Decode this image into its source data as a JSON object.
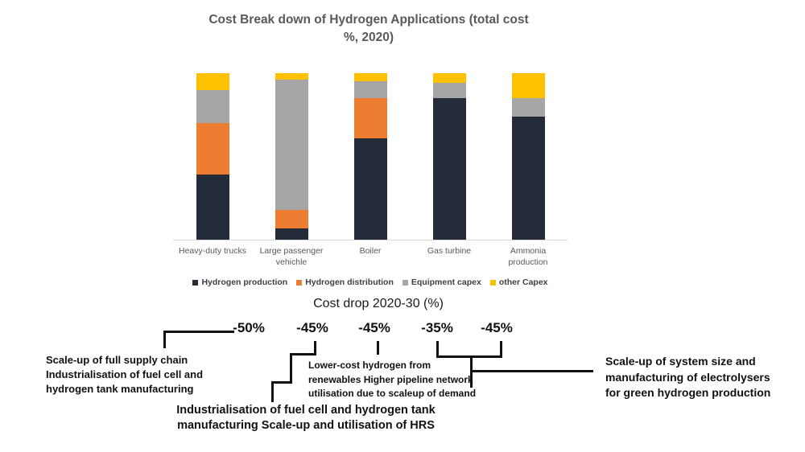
{
  "chart_data": {
    "type": "bar",
    "stacked": true,
    "title": "Cost Break down of Hydrogen Applications (total cost %, 2020)",
    "categories": [
      "Heavy-duty trucks",
      "Large passenger vehichle",
      "Boiler",
      "Gas turbine",
      "Ammonia production"
    ],
    "series": [
      {
        "name": "Hydrogen production",
        "color": "#232C38",
        "values": [
          39,
          7,
          61,
          85,
          74
        ]
      },
      {
        "name": "Hydrogen distribution",
        "color": "#ED7D31",
        "values": [
          31,
          11,
          24,
          0,
          0
        ]
      },
      {
        "name": "Equipment capex",
        "color": "#A6A6A6",
        "values": [
          20,
          78,
          10,
          9,
          11
        ]
      },
      {
        "name": "other Capex",
        "color": "#FFC000",
        "values": [
          10,
          4,
          5,
          6,
          15
        ]
      }
    ],
    "ylim": [
      0,
      100
    ],
    "legend_position": "bottom",
    "grid": false
  },
  "cost_drop": {
    "title": "Cost drop 2020-30 (%)",
    "values": [
      "-50%",
      "-45%",
      "-45%",
      "-35%",
      "-45%"
    ]
  },
  "annotations": {
    "left": "Scale-up of full supply chain\nIndustrialisation of fuel cell  and\nhydrogen tank manufacturing",
    "middle": "Lower-cost hydrogen from\nrenewables Higher pipeline network\nutilisation due to scaleup of demand",
    "bottom": "Industrialisation of fuel cell and hydrogen tank\nmanufacturing Scale-up and utilisation of HRS",
    "right": "Scale-up of system size and\nmanufacturing of electrolysers\nfor green hydrogen production"
  },
  "colors": {
    "title_text": "#595959",
    "axis_text": "#595959",
    "annotation_text": "#111111",
    "axis_line": "#D9D9D9"
  }
}
